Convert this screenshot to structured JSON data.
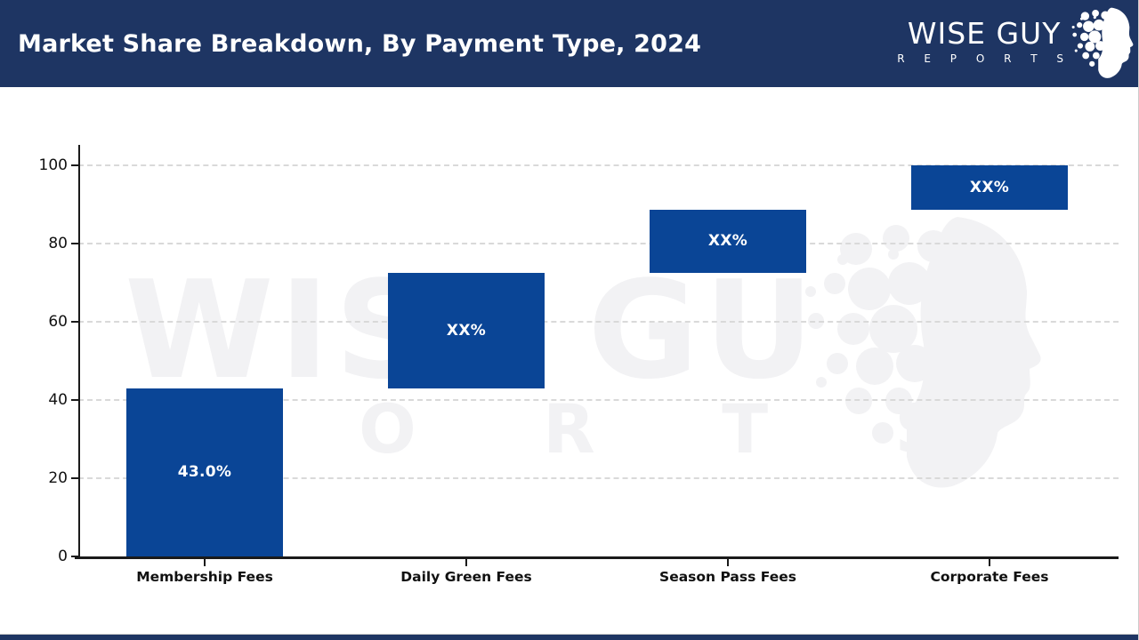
{
  "header": {
    "title": "Market Share Breakdown, By Payment Type, 2024"
  },
  "logo": {
    "line1": "WISE GUY",
    "line2": "R E P O R T S"
  },
  "watermark": {
    "line1": "WISE GU",
    "line2": "P O R T S"
  },
  "colors": {
    "header_bg": "#1e3563",
    "bar": "#0a4596",
    "bar_label": "#ffffff",
    "gridline": "#d9d9d9",
    "axis": "#1a1a1a",
    "watermark": "#f2f2f4"
  },
  "chart_data": {
    "type": "bar",
    "subtype": "waterfall",
    "title": "Market Share Breakdown, By Payment Type, 2024",
    "categories": [
      "Membership Fees",
      "Daily Green Fees",
      "Season Pass Fees",
      "Corporate Fees"
    ],
    "segments": [
      {
        "category": "Membership Fees",
        "start": 0,
        "end": 43.0,
        "value": 43.0,
        "label": "43.0%"
      },
      {
        "category": "Daily Green Fees",
        "start": 43.0,
        "end": 72.5,
        "value": 29.5,
        "label": "XX%"
      },
      {
        "category": "Season Pass Fees",
        "start": 72.5,
        "end": 88.6,
        "value": 16.1,
        "label": "XX%"
      },
      {
        "category": "Corporate Fees",
        "start": 88.6,
        "end": 100.0,
        "value": 11.4,
        "label": "XX%"
      }
    ],
    "xlabel": "",
    "ylabel": "",
    "ylim": [
      0,
      105
    ],
    "yticks": [
      0,
      20,
      40,
      60,
      80,
      100
    ],
    "grid": "horizontal-dashed",
    "legend": "none"
  }
}
